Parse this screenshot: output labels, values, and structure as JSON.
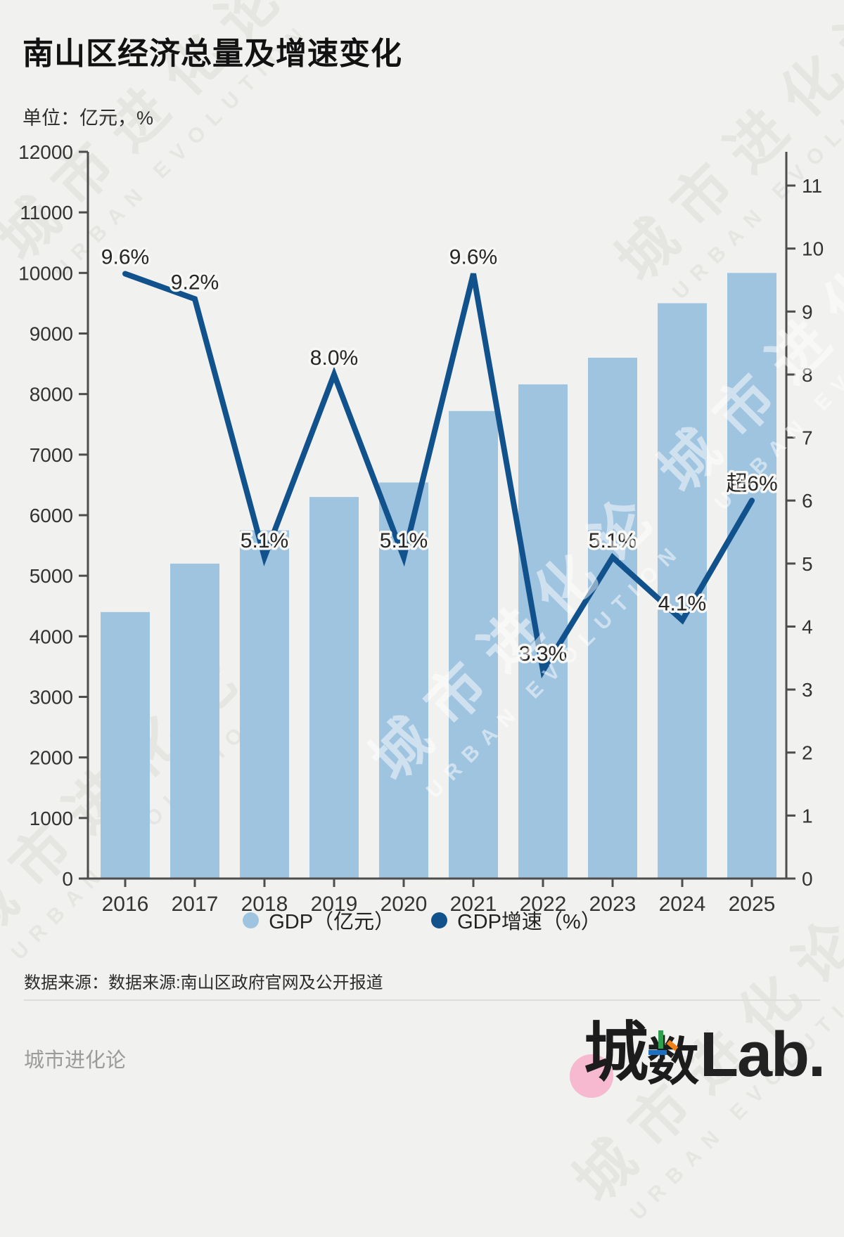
{
  "page": {
    "title": "南山区经济总量及增速变化",
    "subtitle": "单位：亿元，%"
  },
  "watermark": {
    "cn": "城市进化论",
    "en": "URBAN EVOLUTION"
  },
  "chart_data": {
    "type": "combo",
    "title": "南山区经济总量及增速变化",
    "categories": [
      "2016",
      "2017",
      "2018",
      "2019",
      "2020",
      "2021",
      "2022",
      "2023",
      "2024",
      "2025"
    ],
    "series": [
      {
        "name": "GDP（亿元）",
        "type": "bar",
        "axis": "left",
        "color": "#9fc4e0",
        "values": [
          4400,
          5200,
          5750,
          6300,
          6540,
          7720,
          8160,
          8600,
          9500,
          10000
        ]
      },
      {
        "name": "GDP增速（%）",
        "type": "line",
        "axis": "right",
        "color": "#11528c",
        "values": [
          9.6,
          9.2,
          5.1,
          8.0,
          5.1,
          9.6,
          3.3,
          5.1,
          4.1,
          6.0
        ],
        "point_labels": [
          "9.6%",
          "9.2%",
          "5.1%",
          "8.0%",
          "5.1%",
          "9.6%",
          "3.3%",
          "5.1%",
          "4.1%",
          "超6%"
        ]
      }
    ],
    "left_axis": {
      "min": 0,
      "max": 12000,
      "step": 1000
    },
    "right_axis": {
      "min": 0,
      "max": 11,
      "step": 1
    },
    "grid": false,
    "legend_position": "bottom"
  },
  "legend": {
    "items": [
      {
        "label": "GDP（亿元）",
        "color": "#9fc4e0"
      },
      {
        "label": "GDP增速（%）",
        "color": "#11528c"
      }
    ]
  },
  "source": {
    "text": "数据来源：数据来源:南山区政府官网及公开报道"
  },
  "footer": {
    "brand": "城市进化论",
    "logo": {
      "cn1": "城",
      "cn2": "数",
      "latin": "Lab."
    }
  },
  "colors": {
    "background": "#f1f1ef",
    "bar": "#9fc4e0",
    "line": "#11528c",
    "pink": "#f6b9cf",
    "axis": "#4d4d4d",
    "label_text": "#262626",
    "label_outline": "#f7f7f5",
    "logo_green": "#2e9e4f",
    "logo_blue": "#1d6fc0",
    "logo_orange": "#f08119"
  }
}
